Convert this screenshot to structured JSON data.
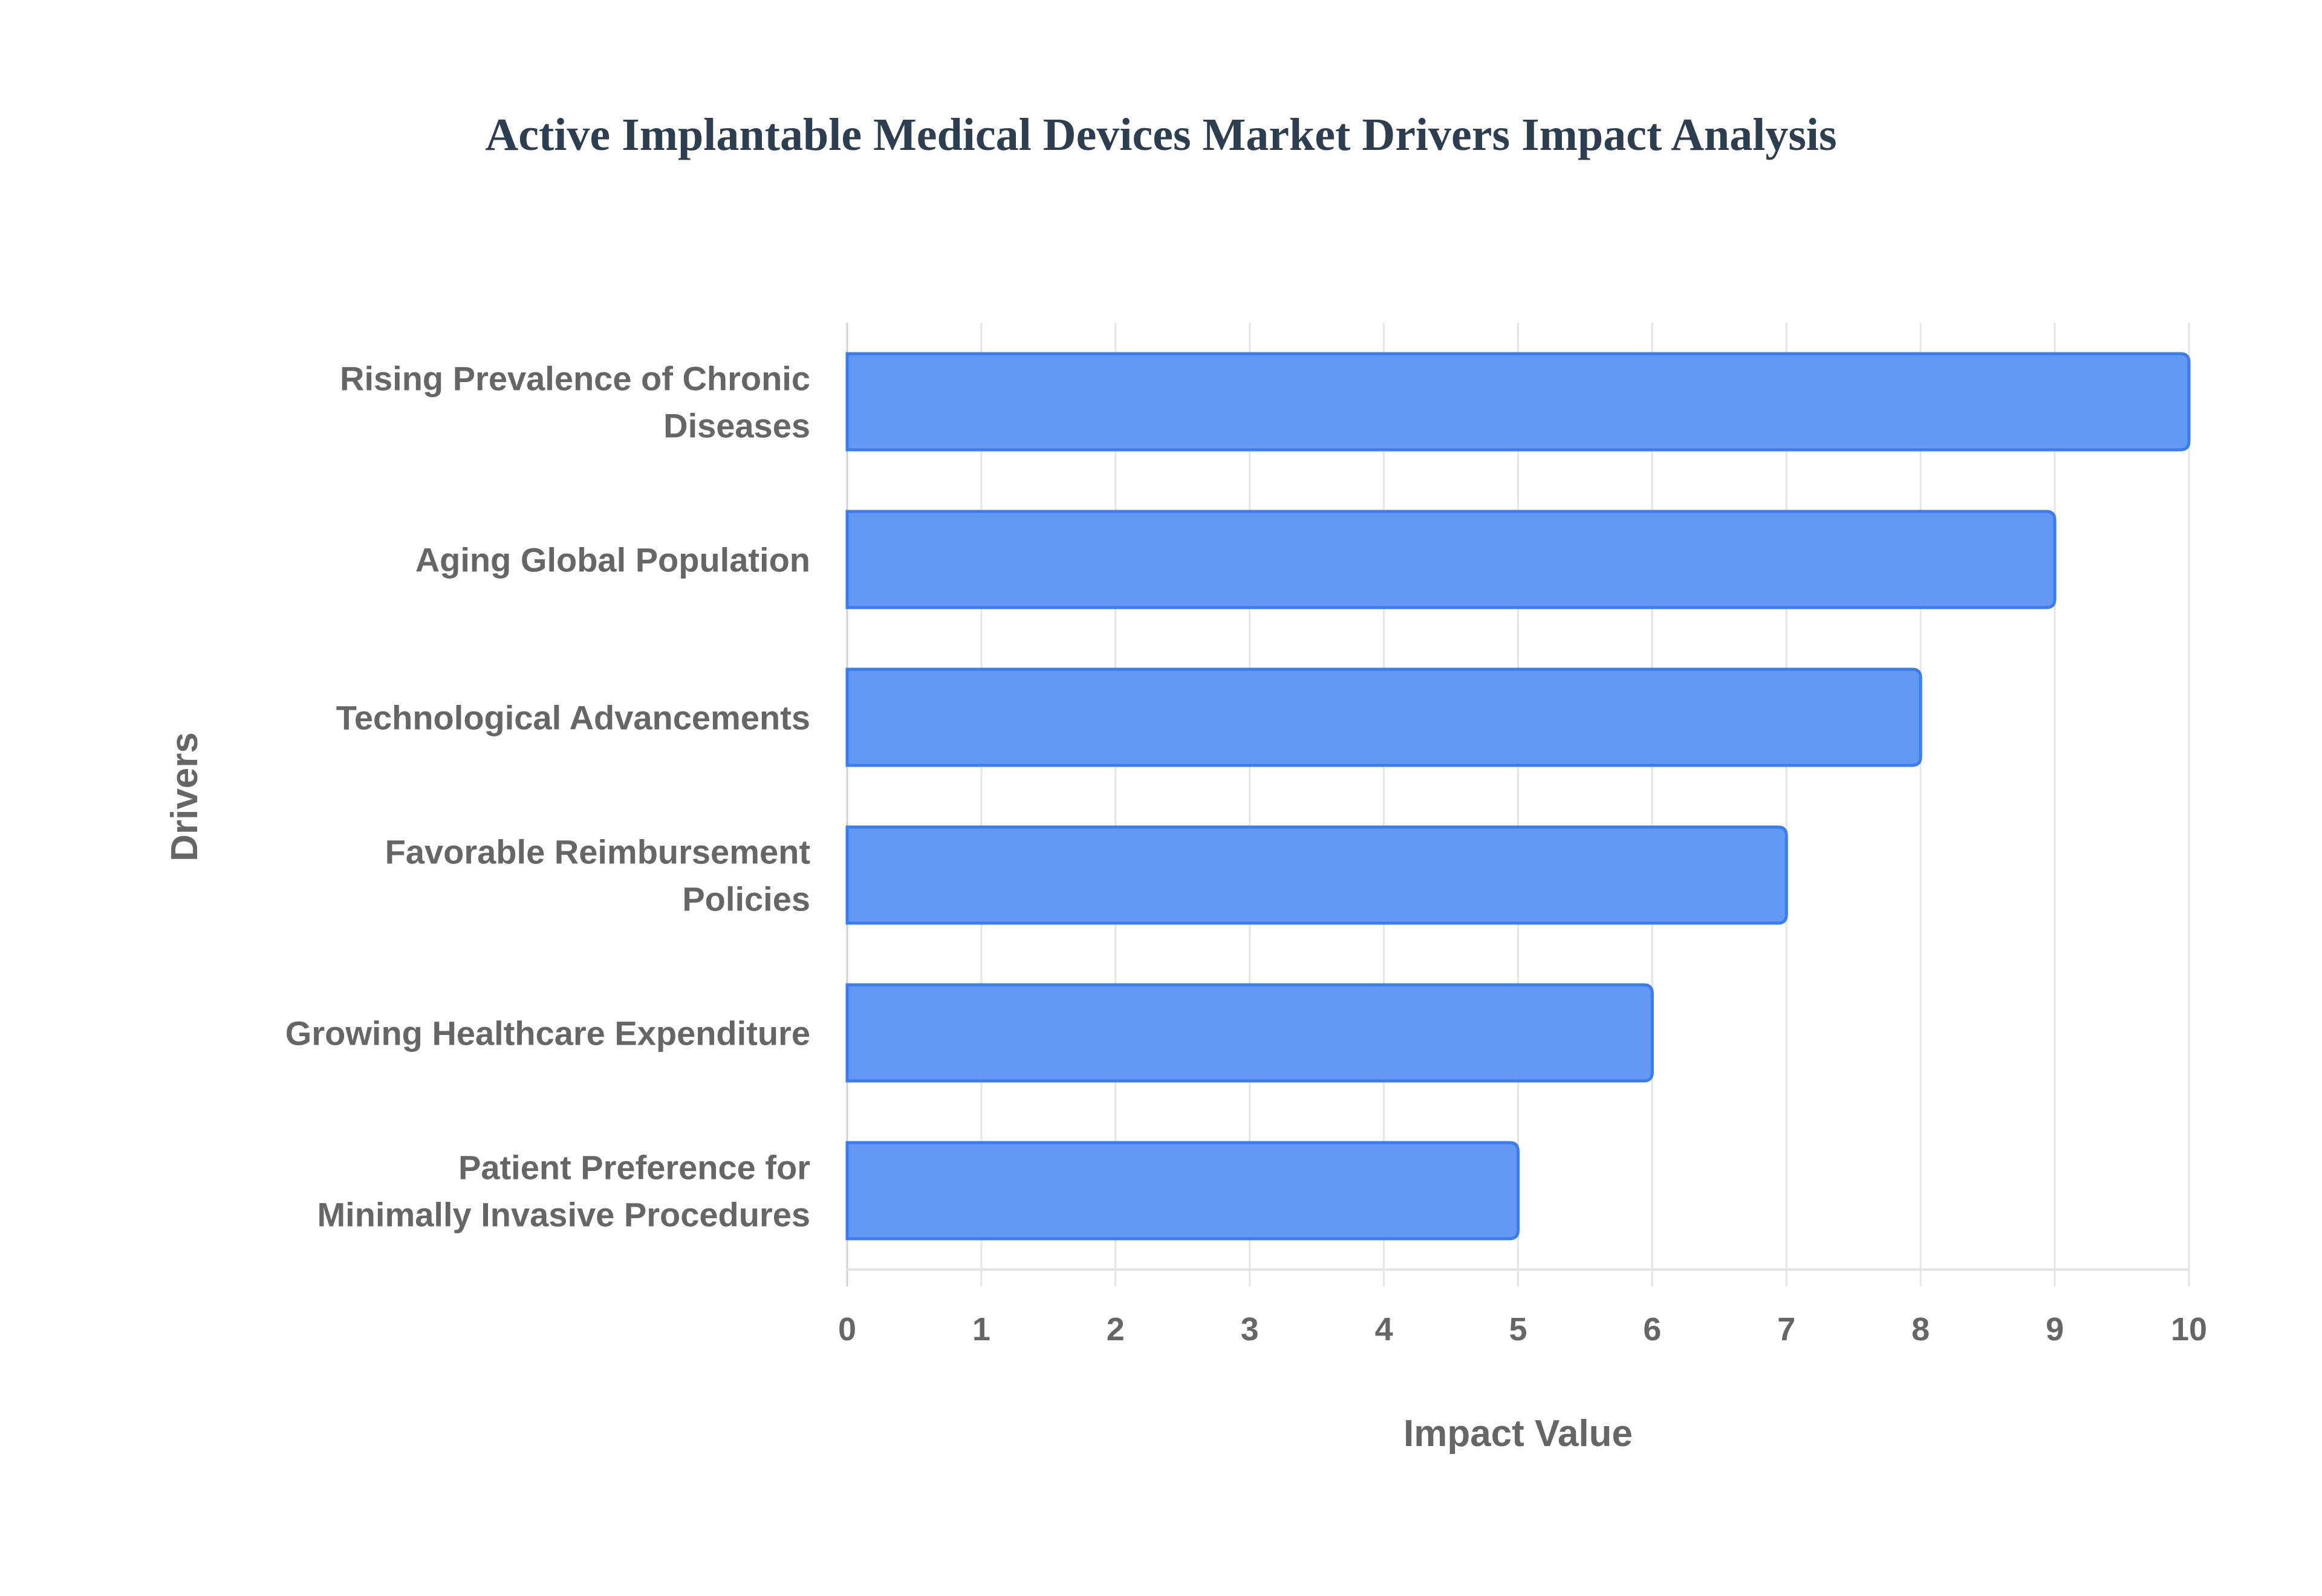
{
  "chart_data": {
    "type": "bar",
    "orientation": "horizontal",
    "title": "Active Implantable Medical Devices Market Drivers Impact Analysis",
    "xlabel": "Impact Value",
    "ylabel": "Drivers",
    "categories": [
      [
        "Rising Prevalence of Chronic",
        "Diseases"
      ],
      [
        "Aging Global Population"
      ],
      [
        "Technological Advancements"
      ],
      [
        "Favorable Reimbursement",
        "Policies"
      ],
      [
        "Growing Healthcare Expenditure"
      ],
      [
        "Patient Preference for",
        "Minimally Invasive Procedures"
      ]
    ],
    "values": [
      10,
      9,
      8,
      7,
      6,
      5
    ],
    "xlim": [
      0,
      10
    ],
    "xticks": [
      "0",
      "1",
      "2",
      "3",
      "4",
      "5",
      "6",
      "7",
      "8",
      "9",
      "10"
    ],
    "grid": true,
    "colors": {
      "bar_fill": "#6399f5",
      "bar_border": "#3b7cf0",
      "grid": "#e5e5e5",
      "text": "#666666",
      "title": "#2c3e50"
    }
  }
}
